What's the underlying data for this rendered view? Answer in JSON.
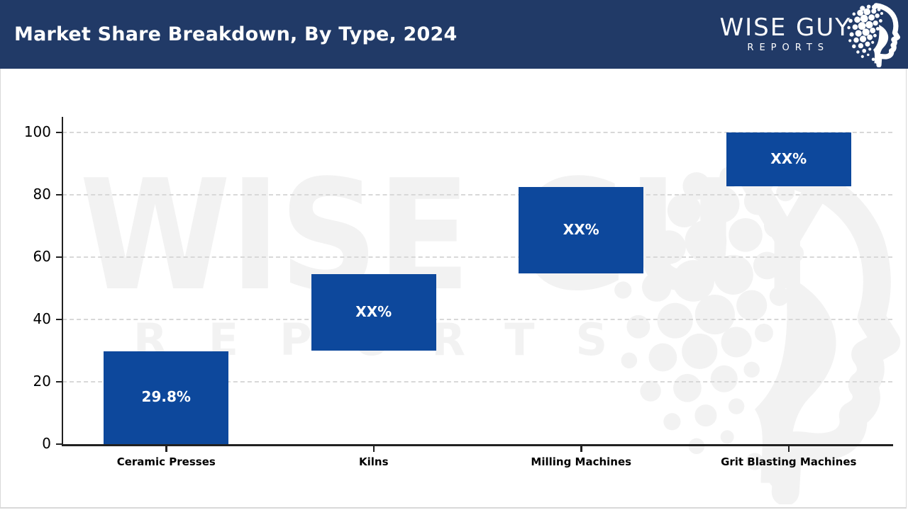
{
  "header": {
    "title": "Market Share Breakdown, By Type, 2024",
    "logo": {
      "line1": "WISE GUY",
      "line2": "REPORTS"
    }
  },
  "watermark": {
    "line1": "WISE GUY",
    "line2": "REPORTS"
  },
  "colors": {
    "header_bg": "#213a67",
    "bar": "#0d489c",
    "grid": "#d8d8d8",
    "axis": "#212121",
    "watermark": "#f2f2f2",
    "bar_label_text": "#ffffff"
  },
  "chart_data": {
    "type": "bar",
    "subtype": "waterfall",
    "title": "Market Share Breakdown, By Type, 2024",
    "categories": [
      "Ceramic Presses",
      "Kilns",
      "Milling Machines",
      "Grit Blasting Machines"
    ],
    "segments": [
      {
        "category": "Ceramic Presses",
        "start": 0,
        "end": 29.8,
        "label": "29.8%"
      },
      {
        "category": "Kilns",
        "start": 30,
        "end": 54.5,
        "label": "XX%"
      },
      {
        "category": "Milling Machines",
        "start": 54.8,
        "end": 82.4,
        "label": "XX%"
      },
      {
        "category": "Grit Blasting Machines",
        "start": 82.8,
        "end": 100,
        "label": "XX%"
      }
    ],
    "yticks": [
      0,
      20,
      40,
      60,
      80,
      100
    ],
    "ylim": [
      0,
      105
    ],
    "xlabel": "",
    "ylabel": "",
    "grid": "horizontal-dashed",
    "legend": "none"
  }
}
